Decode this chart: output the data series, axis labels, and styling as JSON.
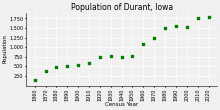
{
  "title": "Population of Durant, Iowa",
  "xlabel": "Census Year",
  "ylabel": "Population",
  "years": [
    1860,
    1870,
    1880,
    1890,
    1900,
    1910,
    1920,
    1930,
    1940,
    1950,
    1960,
    1970,
    1980,
    1990,
    2000,
    2010,
    2020
  ],
  "population": [
    150,
    375,
    480,
    510,
    540,
    600,
    750,
    775,
    750,
    775,
    1075,
    1250,
    1490,
    1560,
    1530,
    1750,
    1790
  ],
  "marker_color": "#008000",
  "marker": "s",
  "marker_size": 2.5,
  "bg_color": "#f0f0f0",
  "grid_color": "white",
  "ylim": [
    0,
    1900
  ],
  "yticks": [
    250,
    500,
    750,
    1000,
    1250,
    1500,
    1750
  ],
  "title_fontsize": 5.5,
  "label_fontsize": 4.0,
  "tick_fontsize": 3.5
}
